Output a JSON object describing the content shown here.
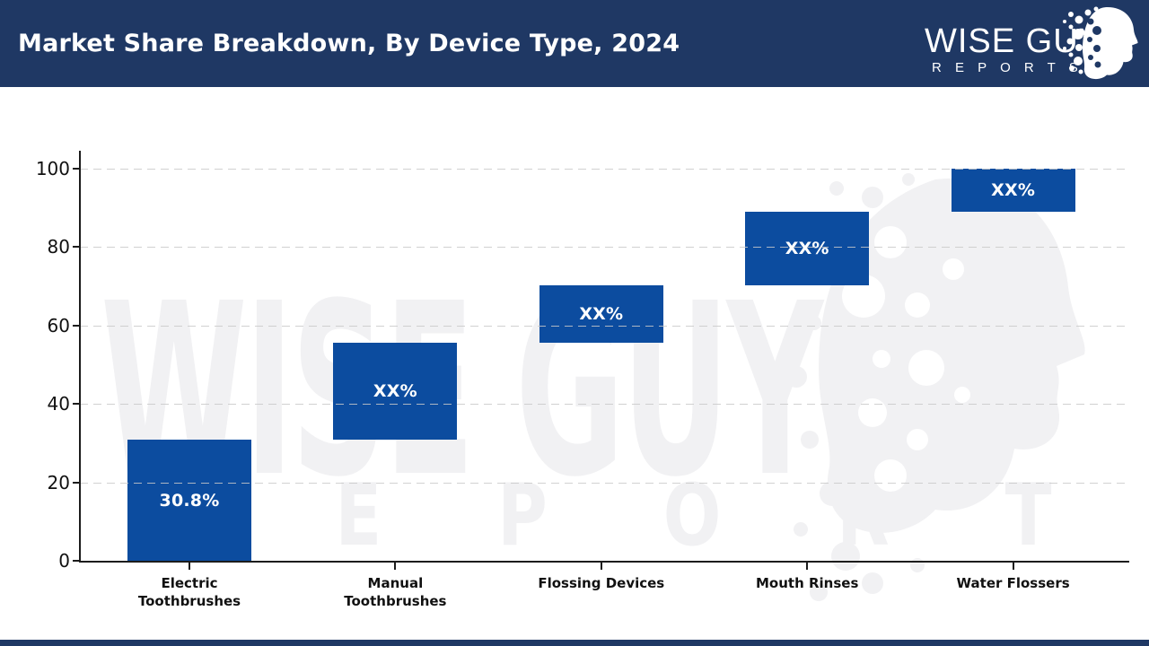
{
  "header": {
    "title": "Market Share Breakdown, By Device Type, 2024",
    "bg_color": "#1F3864",
    "logo": {
      "line1": "WISE GUY",
      "line2": "R E P O R T S"
    }
  },
  "watermark": {
    "line1": "WISE GUY",
    "line2": "R E P O R T S"
  },
  "chart_data": {
    "type": "bar",
    "subtype": "waterfall",
    "title": "Market Share Breakdown, By Device Type, 2024",
    "categories": [
      {
        "label": "Electric Toothbrushes",
        "lines": [
          "Electric",
          "Toothbrushes"
        ]
      },
      {
        "label": "Manual Toothbrushes",
        "lines": [
          "Manual",
          "Toothbrushes"
        ]
      },
      {
        "label": "Flossing Devices",
        "lines": [
          "Flossing Devices"
        ]
      },
      {
        "label": "Mouth Rinses",
        "lines": [
          "Mouth Rinses"
        ]
      },
      {
        "label": "Water Flossers",
        "lines": [
          "Water Flossers"
        ]
      }
    ],
    "segments": [
      {
        "start": 0.0,
        "end": 30.8,
        "label": "30.8%"
      },
      {
        "start": 30.8,
        "end": 55.5,
        "label": "XX%"
      },
      {
        "start": 55.5,
        "end": 70.3,
        "label": "XX%"
      },
      {
        "start": 70.3,
        "end": 89.0,
        "label": "XX%"
      },
      {
        "start": 89.0,
        "end": 100.0,
        "label": "XX%"
      }
    ],
    "xlabel": "",
    "ylabel": "",
    "ylim": [
      0,
      100
    ],
    "yticks": [
      0,
      20,
      40,
      60,
      80,
      100
    ],
    "grid": "horizontal-dashed",
    "legend": "none",
    "bar_color": "#0C4C9F",
    "bar_label_color": "#FFFFFF"
  }
}
